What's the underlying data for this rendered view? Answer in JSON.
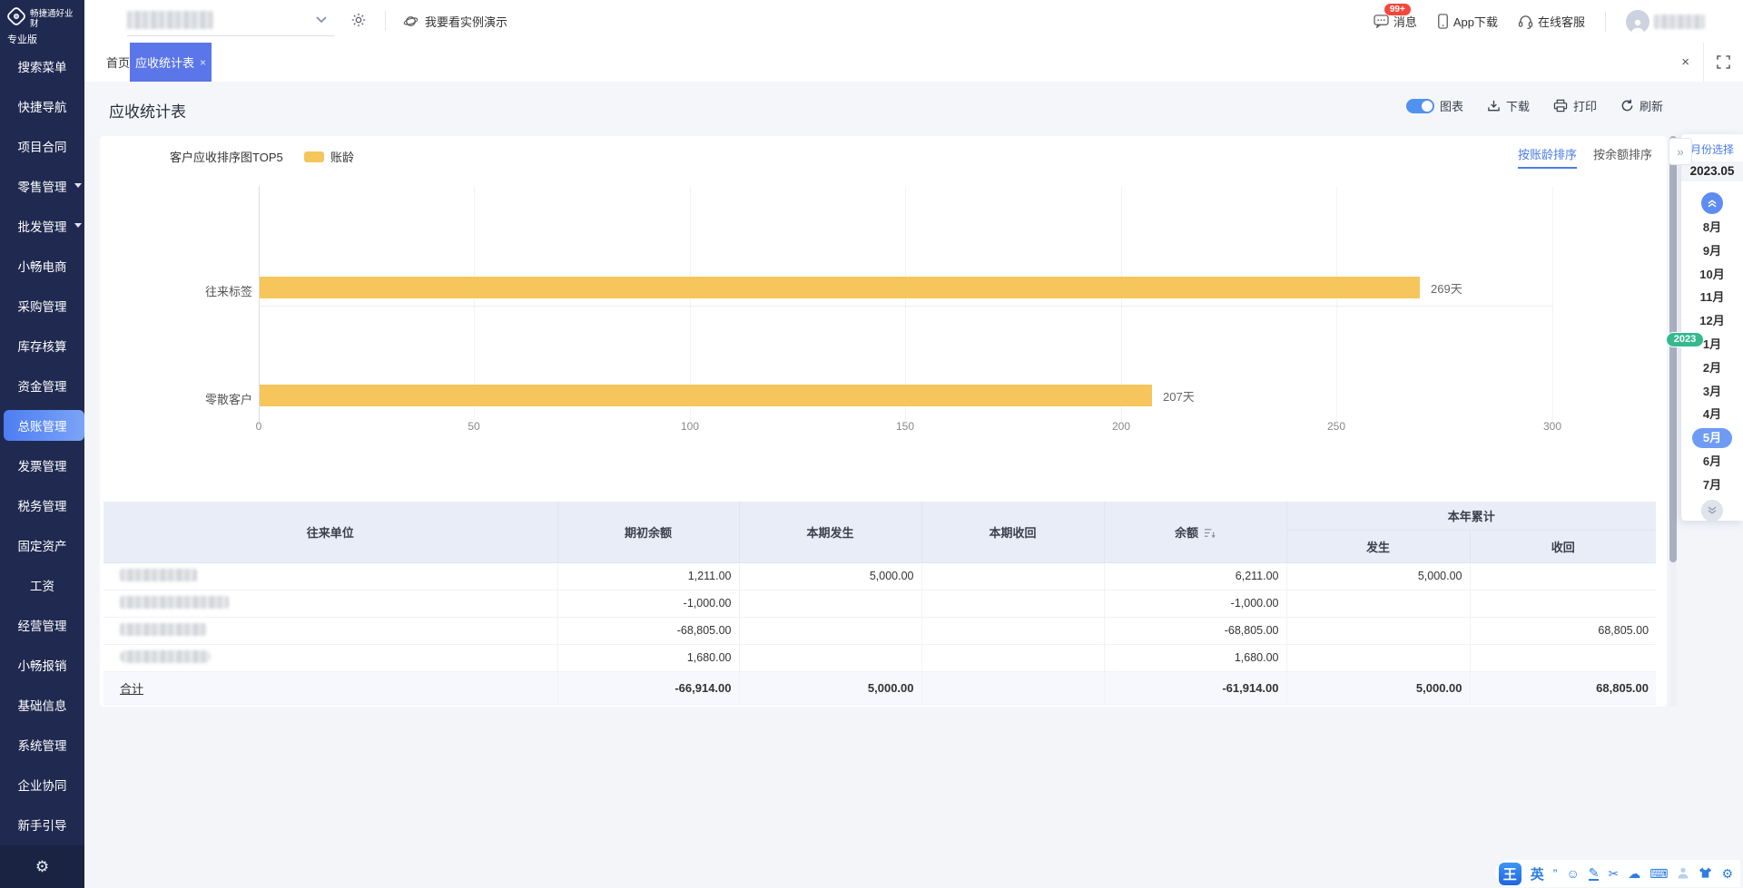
{
  "brand": {
    "name": "畅捷通好业财",
    "edition": "专业版"
  },
  "topbar": {
    "demo": "我要看实例演示",
    "messages": "消息",
    "badge": "99+",
    "app": "App下载",
    "support": "在线客服"
  },
  "tabbar": {
    "tabs": [
      {
        "label": "首页"
      },
      {
        "label": "应收统计表"
      }
    ]
  },
  "page": {
    "title": "应收统计表",
    "chart_toggle": "图表",
    "download": "下载",
    "print": "打印",
    "refresh": "刷新"
  },
  "sidebar": {
    "items": [
      "搜索菜单",
      "快捷导航",
      "项目合同",
      "零售管理",
      "批发管理",
      "小畅电商",
      "采购管理",
      "库存核算",
      "资金管理",
      "总账管理",
      "发票管理",
      "税务管理",
      "固定资产",
      "工资",
      "经营管理",
      "小畅报销",
      "基础信息",
      "系统管理",
      "企业协同",
      "新手引导"
    ],
    "active_item": "总账管理"
  },
  "chart_header": {
    "title": "客户应收排序图TOP5",
    "legend": "账龄",
    "sort_by_age": "按账龄排序",
    "sort_by_balance": "按余额排序"
  },
  "chart_data": {
    "type": "bar",
    "orientation": "horizontal",
    "title": "客户应收排序图TOP5",
    "categories": [
      "往来标签",
      "零散客户"
    ],
    "series": [
      {
        "name": "账龄",
        "values": [
          269,
          207
        ],
        "unit": "天",
        "color": "#f6c65c"
      }
    ],
    "value_labels": [
      "269天",
      "207天"
    ],
    "xlim": [
      0,
      300
    ],
    "x_tick_labels": [
      "0",
      "50",
      "100",
      "150",
      "200",
      "250",
      "300"
    ],
    "grid": true,
    "legend_position": "top"
  },
  "month_panel": {
    "title": "月份选择",
    "current": "2023.05",
    "year_badge": "2023",
    "months": [
      "8月",
      "9月",
      "10月",
      "11月",
      "12月",
      "1月",
      "2月",
      "3月",
      "4月",
      "5月",
      "6月",
      "7月"
    ],
    "active_month": "5月"
  },
  "table": {
    "col_headers": {
      "unit": "往来单位",
      "opening_balance": "期初余额",
      "current_incurred": "本期发生",
      "current_received": "本期收回",
      "balance": "余额",
      "ytd": "本年累计",
      "ytd_incurred": "发生",
      "ytd_received": "收回"
    },
    "rows": [
      [
        "1,211.00",
        "5,000.00",
        "",
        "6,211.00",
        "5,000.00",
        ""
      ],
      [
        "-1,000.00",
        "",
        "",
        "-1,000.00",
        "",
        ""
      ],
      [
        "-68,805.00",
        "",
        "",
        "-68,805.00",
        "",
        "68,805.00"
      ],
      [
        "1,680.00",
        "",
        "",
        "1,680.00",
        "",
        ""
      ]
    ],
    "total_label": "合计",
    "total": [
      "-66,914.00",
      "5,000.00",
      "",
      "-61,914.00",
      "5,000.00",
      "68,805.00"
    ]
  },
  "ime": {
    "logo": "王",
    "lang": "英"
  },
  "icons": {
    "gear": "⚙",
    "collapse": "»",
    "close": "×",
    "tab_close": "×",
    "quote": "”",
    "smiley": "☺",
    "pencil": "✎",
    "scissors": "✂",
    "cloud": "☁",
    "keyboard": "⌨"
  },
  "colors": {
    "accent_blue": "#5b76e9",
    "bar_yellow": "#f6c65c",
    "badge_red": "#f5483b",
    "badge_green": "#35b98e",
    "sidebar_navy": "#202a50"
  }
}
